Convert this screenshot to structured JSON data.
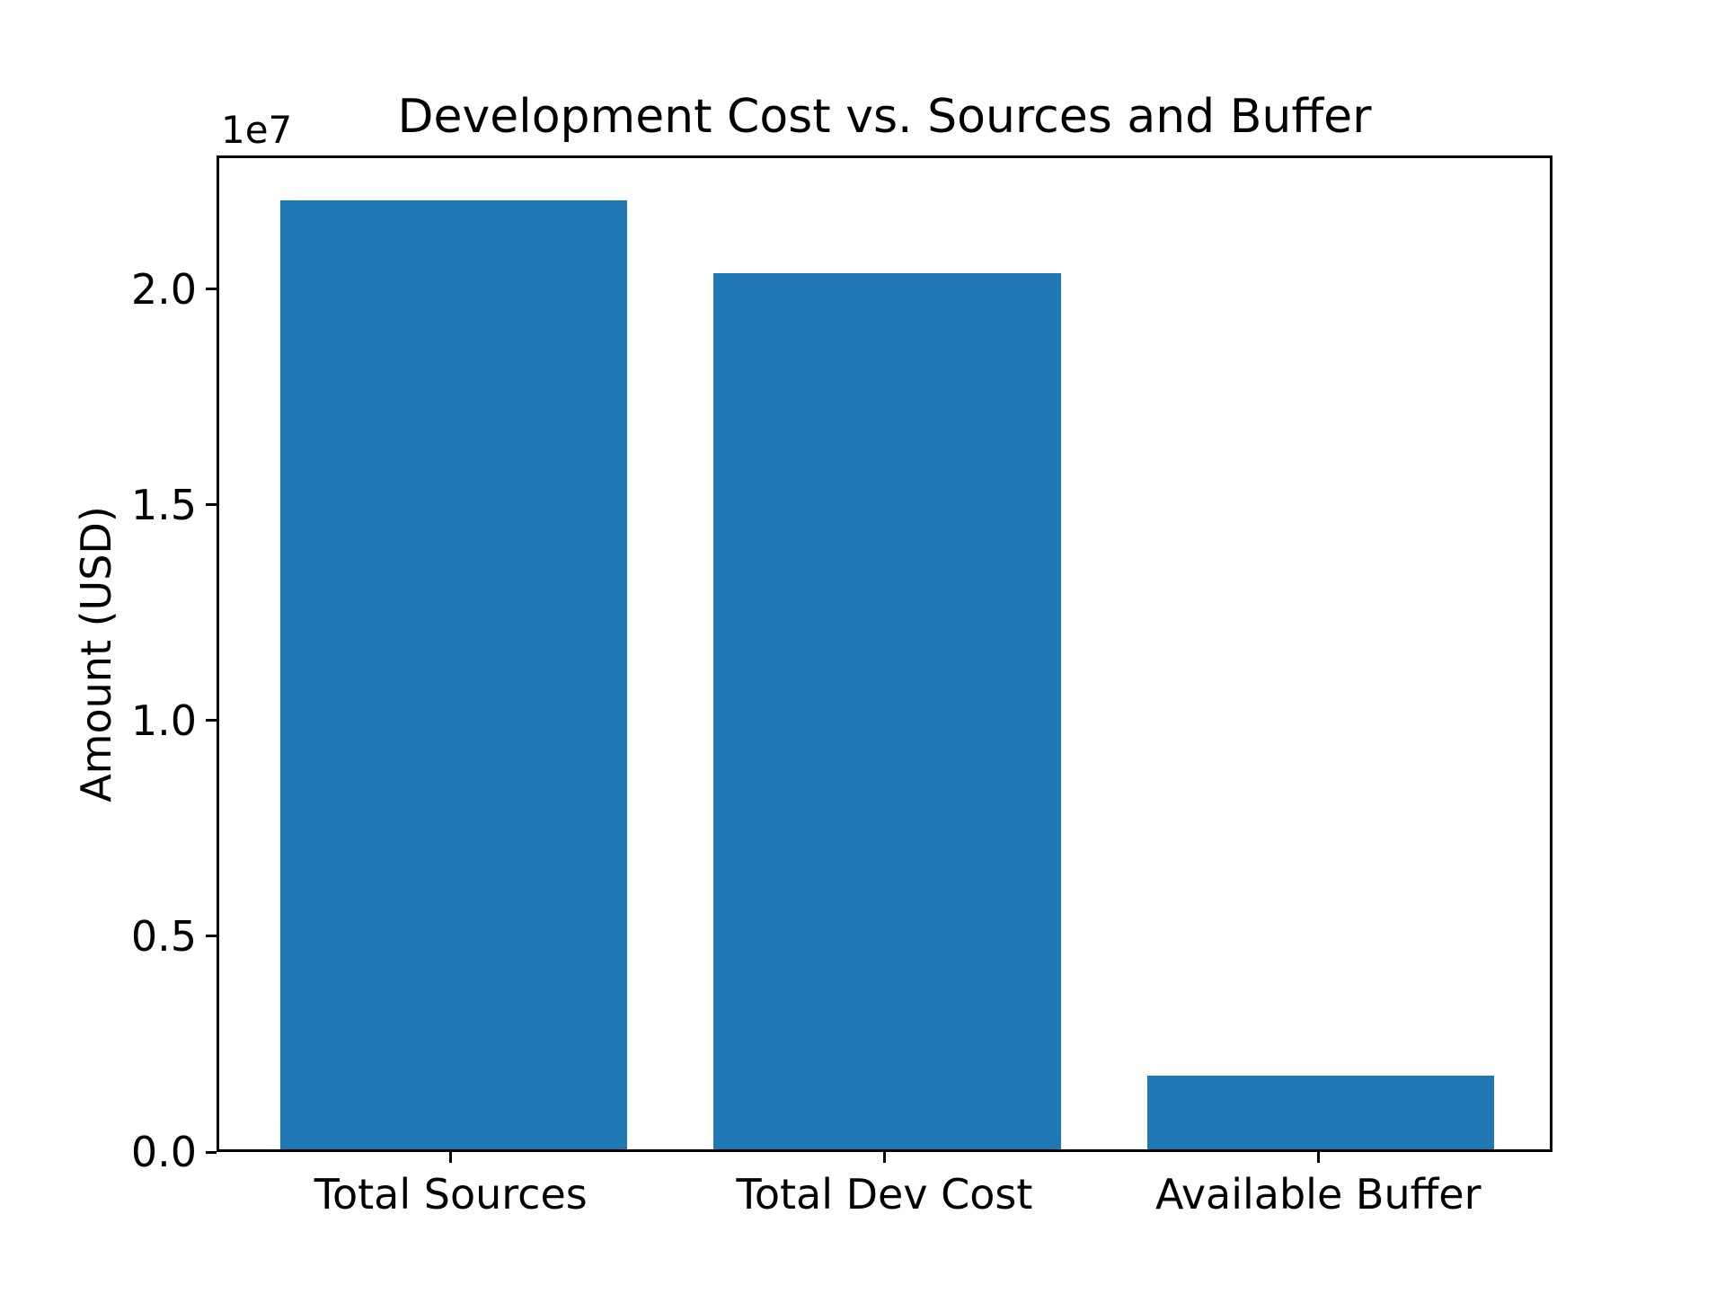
{
  "chart_data": {
    "type": "bar",
    "title": "Development Cost vs. Sources and Buffer",
    "categories": [
      "Total Sources",
      "Total Dev Cost",
      "Available Buffer"
    ],
    "values": [
      22000000,
      20300000,
      1700000
    ],
    "xlabel": "",
    "ylabel": "Amount (USD)",
    "ylim": [
      0,
      23100000
    ],
    "y_ticks": [
      {
        "value": 0,
        "label": "0.0"
      },
      {
        "value": 5000000,
        "label": "0.5"
      },
      {
        "value": 10000000,
        "label": "1.0"
      },
      {
        "value": 15000000,
        "label": "1.5"
      },
      {
        "value": 20000000,
        "label": "2.0"
      }
    ],
    "y_offset_text": "1e7",
    "bar_color": "#1f77b4",
    "axis_color": "#000000",
    "grid": false,
    "legend": null
  }
}
